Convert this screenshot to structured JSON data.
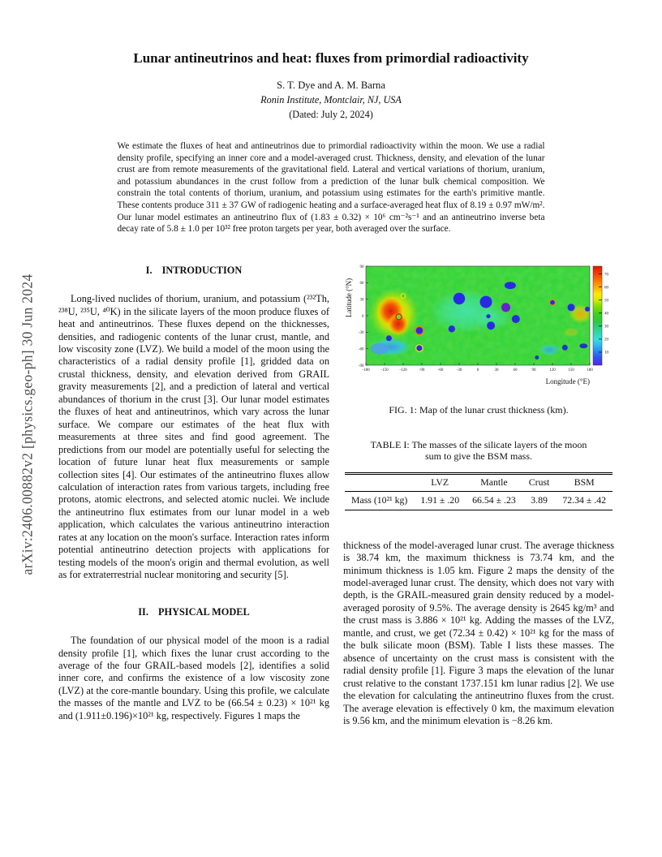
{
  "arxiv_banner": "arXiv:2406.00882v2  [physics.geo-ph]  30 Jun 2024",
  "header": {
    "title": "Lunar antineutrinos and heat: fluxes from primordial radioactivity",
    "authors": "S. T. Dye and A. M. Barna",
    "affiliation": "Ronin Institute, Montclair, NJ, USA",
    "dateline": "(Dated: July 2, 2024)"
  },
  "abstract": "We estimate the fluxes of heat and antineutrinos due to primordial radioactivity within the moon. We use a radial density profile, specifying an inner core and a model-averaged crust. Thickness, density, and elevation of the lunar crust are from remote measurements of the gravitational field. Lateral and vertical variations of thorium, uranium, and potassium abundances in the crust follow from a prediction of the lunar bulk chemical composition. We constrain the total contents of thorium, uranium, and potassium using estimates for the earth's primitive mantle. These contents produce 311 ± 37 GW of radiogenic heating and a surface-averaged heat flux of 8.19 ± 0.97 mW/m². Our lunar model estimates an antineutrino flux of (1.83 ± 0.32) × 10⁶ cm⁻²s⁻¹ and an antineutrino inverse beta decay rate of 5.8 ± 1.0 per 10³² free proton targets per year, both averaged over the surface.",
  "sections": {
    "intro": {
      "num": "I.",
      "heading": "INTRODUCTION",
      "p1": "Long-lived nuclides of thorium, uranium, and potassium (²³²Th, ²³⁸U, ²³⁵U, ⁴⁰K) in the silicate layers of the moon produce fluxes of heat and antineutrinos. These fluxes depend on the thicknesses, densities, and radiogenic contents of the lunar crust, mantle, and low viscosity zone (LVZ). We build a model of the moon using the characteristics of a radial density profile [1], gridded data on crustal thickness, density, and elevation derived from GRAIL gravity measurements [2], and a prediction of lateral and vertical abundances of thorium in the crust [3]. Our lunar model estimates the fluxes of heat and antineutrinos, which vary across the lunar surface. We compare our estimates of the heat flux with measurements at three sites and find good agreement. The predictions from our model are potentially useful for selecting the location of future lunar heat flux measurements or sample collection sites [4]. Our estimates of the antineutrino fluxes allow calculation of interaction rates from various targets, including free protons, atomic electrons, and selected atomic nuclei. We include the antineutrino flux estimates from our lunar model in a web application, which calculates the various antineutrino interaction rates at any location on the moon's surface. Interaction rates inform potential antineutrino detection projects with applications for testing models of the moon's origin and thermal evolution, as well as for extraterrestrial nuclear monitoring and security [5]."
    },
    "model": {
      "num": "II.",
      "heading": "PHYSICAL MODEL",
      "p1_left": "The foundation of our physical model of the moon is a radial density profile [1], which fixes the lunar crust according to the average of the four GRAIL-based models [2], identifies a solid inner core, and confirms the existence of a low viscosity zone (LVZ) at the core-mantle boundary. Using this profile, we calculate the masses of the mantle and LVZ to be (66.54 ± 0.23) × 10²¹ kg and (1.911±0.196)×10²¹ kg, respectively. Figures 1 maps the",
      "p1_right": "thickness of the model-averaged lunar crust. The average thickness is 38.74 km, the maximum thickness is 73.74 km, and the minimum thickness is 1.05 km. Figure 2 maps the density of the model-averaged lunar crust. The density, which does not vary with depth, is the GRAIL-measured grain density reduced by a model-averaged porosity of 9.5%. The average density is 2645 kg/m³ and the crust mass is 3.886 × 10²¹ kg. Adding the masses of the LVZ, mantle, and crust, we get (72.34 ± 0.42) × 10²¹ kg for the mass of the bulk silicate moon (BSM). Table I lists these masses. The absence of uncertainty on the crust mass is consistent with the radial density profile [1]. Figure 3 maps the elevation of the lunar crust relative to the constant 1737.151 km lunar radius [2]. We use the elevation for calculating the antineutrino fluxes from the crust. The average elevation is effectively 0 km, the maximum elevation is 9.56 km, and the minimum elevation is −8.26 km."
    }
  },
  "figure1": {
    "caption": "FIG. 1: Map of the lunar crust thickness (km)."
  },
  "chart_data": {
    "type": "heatmap",
    "title": "Map of the lunar crust thickness (km)",
    "xlabel": "Longitude (°E)",
    "ylabel": "Latitude (°N)",
    "xlim": [
      -180,
      180
    ],
    "ylim": [
      -90,
      90
    ],
    "x_ticks": [
      -180,
      -150,
      -120,
      -90,
      -60,
      -30,
      0,
      30,
      60,
      90,
      120,
      150,
      180
    ],
    "y_ticks": [
      90,
      60,
      30,
      0,
      -30,
      -60,
      -90
    ],
    "colorbar": {
      "ticks": [
        10,
        20,
        30,
        40,
        50,
        60,
        70
      ],
      "range": [
        0,
        76
      ]
    },
    "value_stats": {
      "average_km": 38.74,
      "maximum_km": 73.74,
      "minimum_km": 1.05
    },
    "notable_features": [
      "thick red/orange farside highlands near longitude −135°, latitude 0°",
      "thin blue circular basins (maria) scattered across the nearside",
      "cyan-blue South Pole–Aitken region in the lower left",
      "green background of ~35–45 km thickness"
    ]
  },
  "table1": {
    "caption_line1": "TABLE I: The masses of the silicate layers of the moon",
    "caption_line2": "sum to give the BSM mass.",
    "headers": [
      "",
      "LVZ",
      "Mantle",
      "Crust",
      "BSM"
    ],
    "row_label": "Mass (10²¹ kg)",
    "values": [
      "1.91 ± .20",
      "66.54 ± .23",
      "3.89",
      "72.34 ± .42"
    ]
  }
}
